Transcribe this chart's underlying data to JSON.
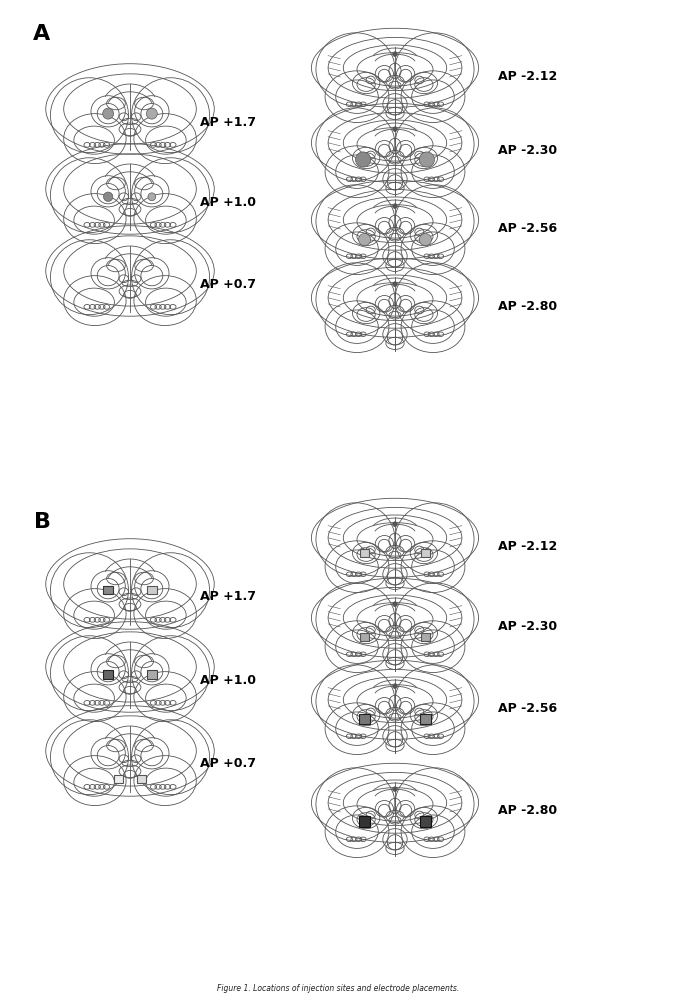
{
  "fig_width": 6.76,
  "fig_height": 10.04,
  "bg_color": "#ffffff",
  "label_A": "A",
  "label_B": "B",
  "panel_A_left_labels": [
    "AP +1.7",
    "AP +1.0",
    "AP +0.7"
  ],
  "panel_A_right_labels": [
    "AP -2.12",
    "AP -2.30",
    "AP -2.56",
    "AP -2.80"
  ],
  "panel_B_left_labels": [
    "AP +1.7",
    "AP +1.0",
    "AP +0.7"
  ],
  "panel_B_right_labels": [
    "AP -2.12",
    "AP -2.30",
    "AP -2.56",
    "AP -2.80"
  ],
  "text_color": "#000000",
  "lc": "#555555",
  "lw": 0.6,
  "caption": "Figure 1. Locations of injection sites and electrode placements."
}
